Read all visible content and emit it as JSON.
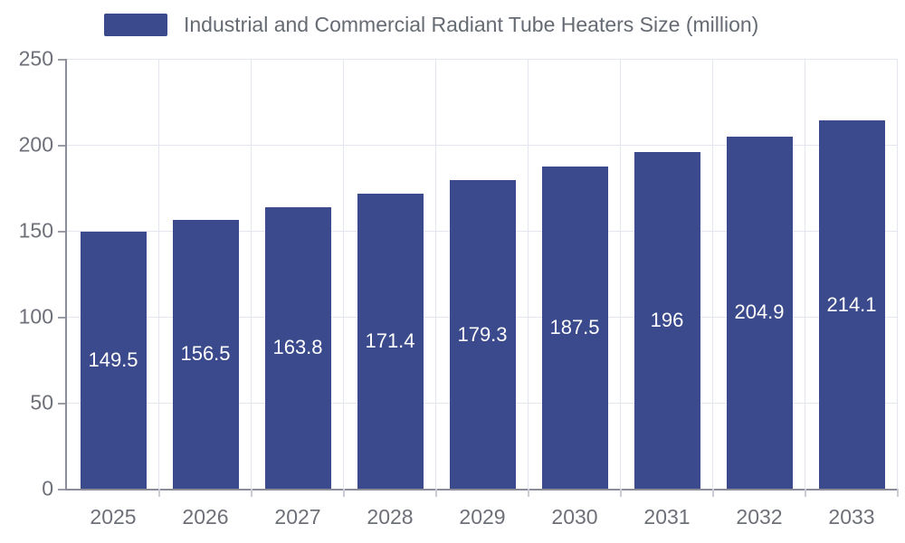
{
  "legend": {
    "label": "Industrial and Commercial Radiant Tube Heaters Size (million)"
  },
  "colors": {
    "bar": "#3a4a8c",
    "axis_line": "#8b8e98",
    "grid_line": "#e3e6ee",
    "tick_label": "#6e7079",
    "legend_text": "#666b73",
    "bar_value_text": "#ffffff",
    "background": "#ffffff"
  },
  "chart_data": {
    "type": "bar",
    "title": "",
    "series_name": "Industrial and Commercial Radiant Tube Heaters Size (million)",
    "categories": [
      "2025",
      "2026",
      "2027",
      "2028",
      "2029",
      "2030",
      "2031",
      "2032",
      "2033"
    ],
    "values": [
      149.5,
      156.5,
      163.8,
      171.4,
      179.3,
      187.5,
      196,
      204.9,
      214.1
    ],
    "value_labels": [
      "149.5",
      "156.5",
      "163.8",
      "171.4",
      "179.3",
      "187.5",
      "196",
      "204.9",
      "214.1"
    ],
    "xlabel": "",
    "ylabel": "",
    "ylim": [
      0,
      250
    ],
    "yticks": [
      0,
      50,
      100,
      150,
      200,
      250
    ],
    "grid": true,
    "legend_position": "top",
    "value_label_position": "center-of-bar"
  }
}
